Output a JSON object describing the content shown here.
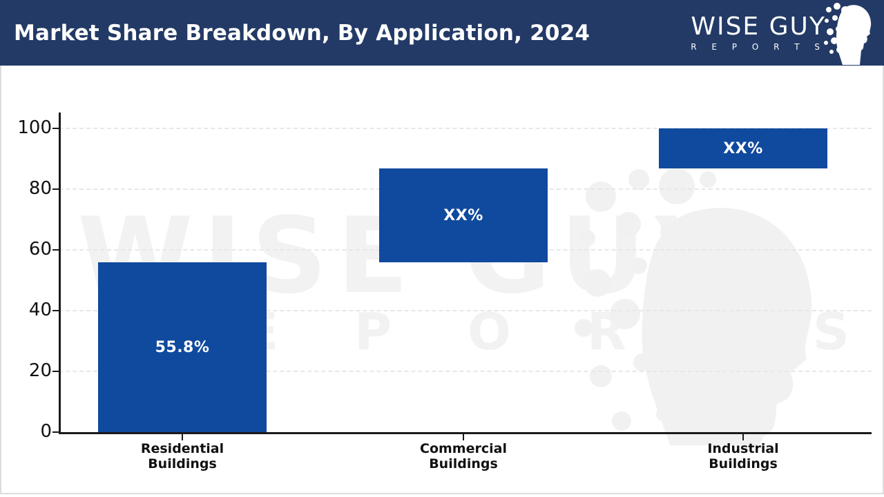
{
  "header": {
    "title": "Market Share Breakdown, By Application, 2024",
    "logo": {
      "line1": "WISE GUY",
      "line2": "R E P O R T S",
      "icon": "dotted-face-profile"
    }
  },
  "watermark": {
    "line1": "WISE GUY",
    "line2": "R E P O R T S",
    "icon": "dotted-face-profile"
  },
  "colors": {
    "header_bg": "#233a66",
    "bar": "#104a9e",
    "bar_label_text": "#ffffff",
    "axis": "#1a1a1a",
    "gridline": "#e7e7e7",
    "watermark": "#f2f2f2",
    "frame_border": "#dcdcdc"
  },
  "chart_data": {
    "type": "bar",
    "subtype": "floating-waterfall-segments",
    "title": "Market Share Breakdown, By Application, 2024",
    "xlabel": "",
    "ylabel": "",
    "ylim": [
      0,
      105
    ],
    "yticks": [
      0,
      20,
      40,
      60,
      80,
      100
    ],
    "grid": "horizontal-dashed",
    "legend": "none",
    "categories": [
      "Residential Buildings",
      "Commercial Buildings",
      "Industrial Buildings"
    ],
    "segments": [
      {
        "category_lines": [
          "Residential",
          "Buildings"
        ],
        "start": 0,
        "end": 55.8,
        "label": "55.8%"
      },
      {
        "category_lines": [
          "Commercial",
          "Buildings"
        ],
        "start": 55.8,
        "end": 86.8,
        "label": "XX%"
      },
      {
        "category_lines": [
          "Industrial",
          "Buildings"
        ],
        "start": 86.8,
        "end": 100,
        "label": "XX%"
      }
    ]
  }
}
